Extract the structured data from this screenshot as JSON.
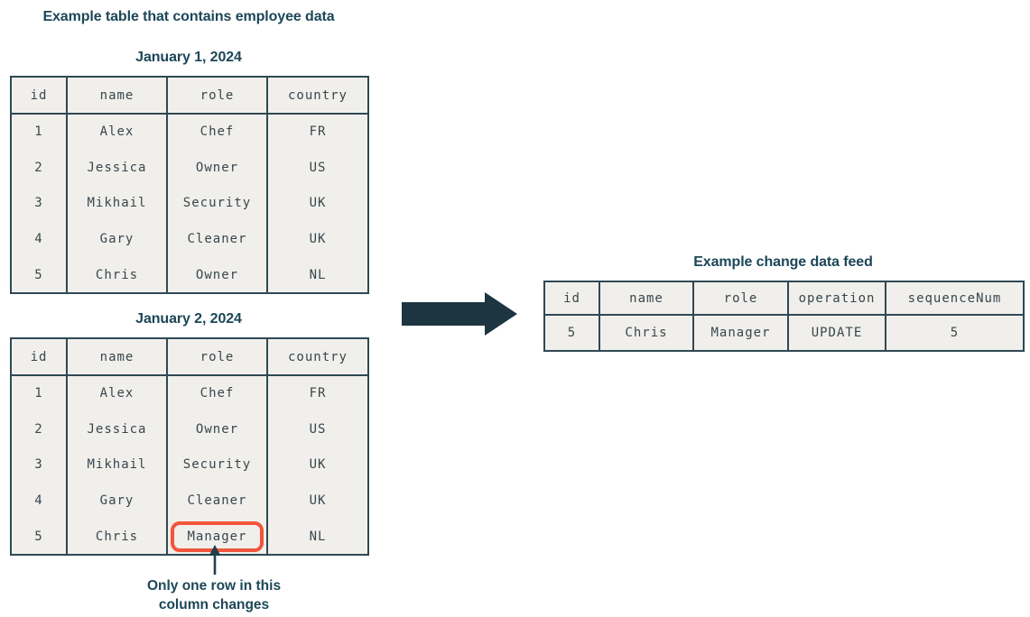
{
  "main_title": "Example table that contains employee data",
  "colors": {
    "table_fill": "#f1efeb",
    "table_border": "#2e4953",
    "title_text": "#1c4758",
    "cell_text": "#37474f",
    "highlight_ring": "#f2563c",
    "flow_arrow": "#1d3541"
  },
  "employee_tables": {
    "columns": [
      "id",
      "name",
      "role",
      "country"
    ],
    "snapshots": [
      {
        "title": "January 1, 2024",
        "rows": [
          [
            "1",
            "Alex",
            "Chef",
            "FR"
          ],
          [
            "2",
            "Jessica",
            "Owner",
            "US"
          ],
          [
            "3",
            "Mikhail",
            "Security",
            "UK"
          ],
          [
            "4",
            "Gary",
            "Cleaner",
            "UK"
          ],
          [
            "5",
            "Chris",
            "Owner",
            "NL"
          ]
        ]
      },
      {
        "title": "January 2, 2024",
        "rows": [
          [
            "1",
            "Alex",
            "Chef",
            "FR"
          ],
          [
            "2",
            "Jessica",
            "Owner",
            "US"
          ],
          [
            "3",
            "Mikhail",
            "Security",
            "UK"
          ],
          [
            "4",
            "Gary",
            "Cleaner",
            "UK"
          ],
          [
            "5",
            "Chris",
            "Manager",
            "NL"
          ]
        ],
        "highlight": {
          "row_index": 4,
          "col_index": 2,
          "value": "Manager"
        }
      }
    ]
  },
  "annotation": {
    "line1": "Only one row in this",
    "line2": "column changes"
  },
  "change_feed_table": {
    "title": "Example change data feed",
    "columns": [
      "id",
      "name",
      "role",
      "operation",
      "sequenceNum"
    ],
    "rows": [
      [
        "5",
        "Chris",
        "Manager",
        "UPDATE",
        "5"
      ]
    ]
  },
  "icons": {
    "flow_arrow": "right-arrow",
    "annotation_arrow": "up-arrow"
  }
}
